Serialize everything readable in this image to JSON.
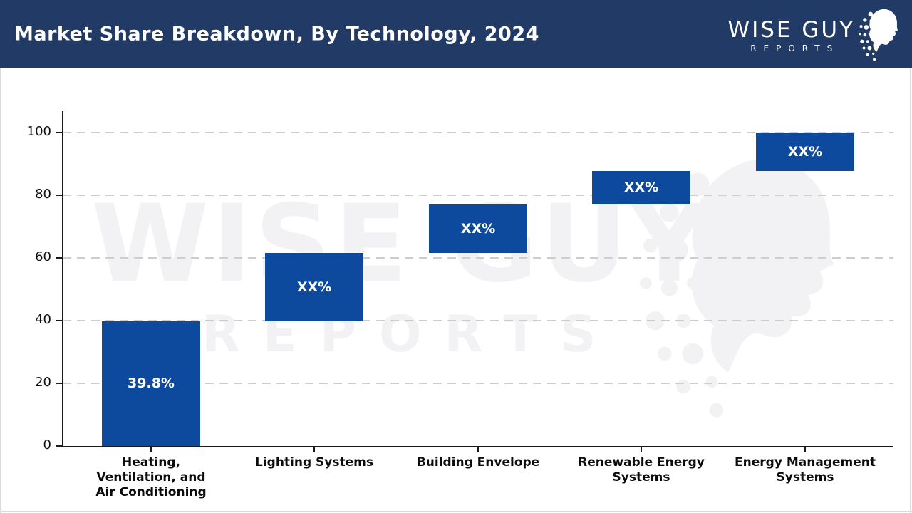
{
  "header": {
    "title": "Market Share Breakdown, By Technology, 2024",
    "logo": {
      "name_top": "WISE GUY",
      "name_bottom": "REPORTS"
    }
  },
  "watermark": {
    "text_top": "WISE GUY",
    "text_bottom": "REPORTS"
  },
  "colors": {
    "header_bg": "#213a66",
    "bar": "#0d4a9e",
    "bar_label": "#ffffff",
    "watermark": "#f2f2f4",
    "grid": "#cdcdcd",
    "axis": "#1a1a1a"
  },
  "chart_data": {
    "type": "bar",
    "subtype": "floating-waterfall",
    "title": "Market Share Breakdown, By Technology, 2024",
    "xlabel": "",
    "ylabel": "",
    "categories": [
      "Heating, Ventilation, and Air Conditioning",
      "Lighting Systems",
      "Building Envelope",
      "Renewable Energy Systems",
      "Energy Management Systems"
    ],
    "category_label_lines": [
      [
        "Heating,",
        "Ventilation, and",
        "Air Conditioning"
      ],
      [
        "Lighting Systems"
      ],
      [
        "Building Envelope"
      ],
      [
        "Renewable Energy",
        "Systems"
      ],
      [
        "Energy Management",
        "Systems"
      ]
    ],
    "segments": [
      {
        "category": "Heating, Ventilation, and Air Conditioning",
        "start": 0,
        "end": 39.8,
        "label": "39.8%"
      },
      {
        "category": "Lighting Systems",
        "start": 39.8,
        "end": 61.5,
        "label": "XX%"
      },
      {
        "category": "Building Envelope",
        "start": 61.5,
        "end": 76.9,
        "label": "XX%"
      },
      {
        "category": "Renewable Energy Systems",
        "start": 76.9,
        "end": 87.7,
        "label": "XX%"
      },
      {
        "category": "Energy Management Systems",
        "start": 87.7,
        "end": 100,
        "label": "XX%"
      }
    ],
    "yticks": [
      0,
      20,
      40,
      60,
      80,
      100
    ],
    "ylim": [
      0,
      106
    ],
    "grid": "horizontal-dashed",
    "legend": false
  }
}
